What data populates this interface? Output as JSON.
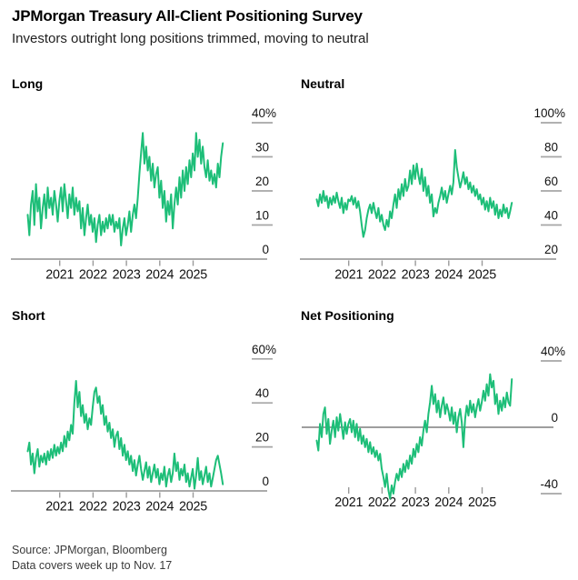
{
  "header": {
    "title": "JPMorgan Treasury All-Client Positioning Survey",
    "subtitle": "Investors outright long positions trimmed, moving to neutral"
  },
  "footer": {
    "source": "Source: JPMorgan, Bloomberg",
    "note": "Data covers week up to Nov. 17"
  },
  "accent_color": "#1dbe78",
  "axis_color": "#8f8f8f",
  "chart_data": [
    {
      "type": "line",
      "title": "Long",
      "unit": "%",
      "x_start": 2020.04,
      "x_step": 0.05,
      "x_range": [
        2020.04,
        2025.89
      ],
      "x_ticks": [
        2021,
        2022,
        2023,
        2024,
        2025
      ],
      "x_tick_labels": [
        "2021",
        "2022",
        "2023",
        "2024",
        "2025"
      ],
      "y_ticks": [
        0,
        10,
        20,
        30,
        40
      ],
      "y_tick_labels": [
        "0",
        "10",
        "20",
        "30",
        "40%"
      ],
      "ylim": [
        0,
        40
      ],
      "zero_line": false,
      "values": [
        13,
        7,
        16,
        20,
        10,
        22,
        14,
        18,
        9,
        15,
        19,
        12,
        21,
        15,
        18,
        13,
        20,
        16,
        11,
        17,
        21,
        14,
        22,
        17,
        12,
        19,
        15,
        21,
        13,
        18,
        14,
        17,
        9,
        15,
        7,
        12,
        16,
        10,
        13,
        8,
        12,
        5,
        10,
        13,
        7,
        11,
        8,
        12,
        9,
        13,
        10,
        13,
        8,
        11,
        9,
        12,
        4,
        9,
        12,
        7,
        10,
        14,
        8,
        13,
        16,
        12,
        18,
        25,
        31,
        37,
        28,
        33,
        26,
        30,
        23,
        28,
        21,
        25,
        27,
        18,
        23,
        15,
        20,
        11,
        17,
        13,
        19,
        9,
        16,
        21,
        16,
        24,
        18,
        26,
        20,
        27,
        22,
        29,
        24,
        31,
        26,
        37,
        30,
        35,
        28,
        33,
        27,
        24,
        29,
        23,
        26,
        22,
        25,
        21,
        28,
        24,
        30,
        34
      ]
    },
    {
      "type": "line",
      "title": "Neutral",
      "unit": "%",
      "x_start": 2020.04,
      "x_step": 0.05,
      "x_range": [
        2020.04,
        2025.89
      ],
      "x_ticks": [
        2021,
        2022,
        2023,
        2024,
        2025
      ],
      "x_tick_labels": [
        "2021",
        "2022",
        "2023",
        "2024",
        "2025"
      ],
      "y_ticks": [
        20,
        40,
        60,
        80,
        100
      ],
      "y_tick_labels": [
        "20",
        "40",
        "60",
        "80",
        "100%"
      ],
      "ylim": [
        20,
        100
      ],
      "zero_line": false,
      "values": [
        55,
        51,
        58,
        53,
        60,
        54,
        57,
        50,
        56,
        52,
        57,
        53,
        59,
        54,
        50,
        56,
        47,
        53,
        49,
        55,
        54,
        57,
        52,
        56,
        50,
        54,
        48,
        40,
        33,
        37,
        44,
        49,
        52,
        47,
        53,
        48,
        44,
        50,
        42,
        46,
        40,
        37,
        43,
        39,
        48,
        44,
        52,
        58,
        50,
        61,
        55,
        64,
        57,
        67,
        60,
        63,
        72,
        64,
        75,
        67,
        76,
        69,
        64,
        73,
        60,
        68,
        57,
        63,
        53,
        58,
        45,
        50,
        47,
        53,
        57,
        62,
        55,
        60,
        53,
        58,
        63,
        58,
        65,
        84,
        74,
        68,
        62,
        66,
        71,
        64,
        68,
        61,
        65,
        59,
        63,
        57,
        61,
        55,
        58,
        52,
        56,
        49,
        54,
        48,
        56,
        50,
        54,
        46,
        52,
        44,
        49,
        45,
        52,
        47,
        50,
        44,
        48,
        53
      ]
    },
    {
      "type": "line",
      "title": "Short",
      "unit": "%",
      "x_start": 2020.04,
      "x_step": 0.05,
      "x_range": [
        2020.04,
        2025.89
      ],
      "x_ticks": [
        2021,
        2022,
        2023,
        2024,
        2025
      ],
      "x_tick_labels": [
        "2021",
        "2022",
        "2023",
        "2024",
        "2025"
      ],
      "y_ticks": [
        0,
        20,
        40,
        60
      ],
      "y_tick_labels": [
        "0",
        "20",
        "40",
        "60%"
      ],
      "ylim": [
        0,
        60
      ],
      "zero_line": false,
      "values": [
        18,
        22,
        12,
        17,
        8,
        15,
        19,
        11,
        16,
        13,
        17,
        12,
        18,
        14,
        19,
        15,
        21,
        16,
        20,
        17,
        22,
        18,
        25,
        20,
        27,
        23,
        30,
        26,
        40,
        50,
        38,
        45,
        34,
        39,
        31,
        35,
        28,
        33,
        30,
        38,
        45,
        47,
        40,
        43,
        35,
        39,
        30,
        34,
        27,
        31,
        24,
        28,
        20,
        25,
        27,
        19,
        24,
        16,
        21,
        14,
        18,
        12,
        16,
        9,
        14,
        7,
        12,
        16,
        10,
        5,
        9,
        13,
        6,
        11,
        4,
        8,
        12,
        6,
        10,
        3,
        8,
        5,
        11,
        2,
        7,
        10,
        4,
        8,
        17,
        9,
        13,
        5,
        10,
        7,
        12,
        4,
        8,
        2,
        6,
        10,
        1,
        7,
        15,
        5,
        9,
        3,
        7,
        11,
        4,
        8,
        2,
        6,
        10,
        14,
        16,
        12,
        8,
        3
      ]
    },
    {
      "type": "line",
      "title": "Net Positioning",
      "unit": "%",
      "x_start": 2020.04,
      "x_step": 0.05,
      "x_range": [
        2020.04,
        2025.89
      ],
      "x_ticks": [
        2021,
        2022,
        2023,
        2024,
        2025
      ],
      "x_tick_labels": [
        "2021",
        "2022",
        "2023",
        "2024",
        "2025"
      ],
      "y_ticks": [
        -40,
        0,
        40
      ],
      "y_tick_labels": [
        "-40",
        "0",
        "40%"
      ],
      "ylim": [
        -48,
        40
      ],
      "zero_line": true,
      "values": [
        -8,
        -14,
        2,
        -6,
        8,
        12,
        -4,
        5,
        -10,
        -2,
        4,
        -6,
        6,
        -2,
        8,
        1,
        -7,
        3,
        -4,
        2,
        5,
        -3,
        4,
        -6,
        2,
        -8,
        -1,
        -10,
        -5,
        -12,
        -7,
        -15,
        -9,
        -16,
        -12,
        -18,
        -14,
        -20,
        -16,
        -25,
        -30,
        -36,
        -28,
        -38,
        -43,
        -35,
        -40,
        -33,
        -28,
        -32,
        -25,
        -30,
        -22,
        -27,
        -20,
        -25,
        -17,
        -22,
        -13,
        -18,
        -10,
        -15,
        -6,
        -11,
        -2,
        4,
        -3,
        8,
        15,
        25,
        14,
        20,
        9,
        16,
        6,
        13,
        18,
        8,
        14,
        10,
        4,
        12,
        2,
        9,
        -3,
        6,
        11,
        3,
        -12,
        5,
        13,
        7,
        16,
        9,
        14,
        6,
        12,
        17,
        10,
        15,
        22,
        16,
        26,
        19,
        32,
        24,
        28,
        14,
        20,
        8,
        16,
        10,
        18,
        12,
        21,
        15,
        13,
        29
      ]
    }
  ]
}
